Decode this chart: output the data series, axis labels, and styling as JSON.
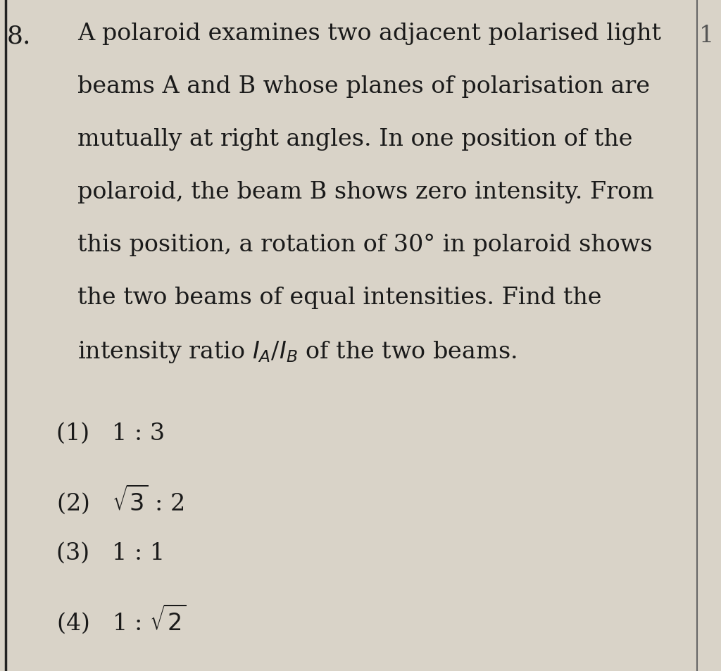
{
  "background_color": "#d9d3c8",
  "text_color": "#1a1a1a",
  "question_number": "8.",
  "right_number": "1",
  "question_lines": [
    "A polaroid examines two adjacent polarised light",
    "beams A and B whose planes of polarisation are",
    "mutually at right angles. In one position of the",
    "polaroid, the beam B shows zero intensity. From",
    "this position, a rotation of 30° in polaroid shows",
    "the two beams of equal intensities. Find the",
    "intensity ratio $I_A$/$I_B$ of the two beams."
  ],
  "options": [
    "(1)   1 : 3",
    "(2)   $\\sqrt{3}$ : 2",
    "(3)   1 : 1",
    "(4)   1 : $\\sqrt{2}$"
  ],
  "left_border_color": "#222222",
  "right_border_color": "#666666",
  "font_size_q_num": 26,
  "font_size_text": 24,
  "font_size_options": 24
}
